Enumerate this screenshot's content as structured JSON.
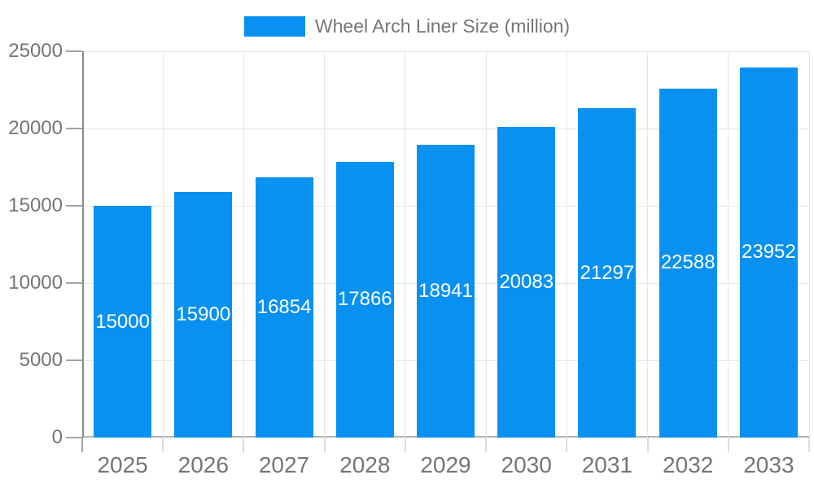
{
  "legend": {
    "label": "Wheel Arch Liner Size (million)"
  },
  "colors": {
    "bar": "#0991f2",
    "bar_value_label": "#ffffff",
    "grid": "#e6e6e6",
    "y_axis_line": "#8a8a8a",
    "x_axis_line": "#b3b3b3",
    "y_tick": "#a3a3a3",
    "x_tick": "#dcdcdc",
    "tick_text": "#757575",
    "background": "#ffffff"
  },
  "chart_data": {
    "type": "bar",
    "title": "Wheel Arch Liner Size (million)",
    "categories": [
      "2025",
      "2026",
      "2027",
      "2028",
      "2029",
      "2030",
      "2031",
      "2032",
      "2033"
    ],
    "values": [
      15000,
      15900,
      16854,
      17866,
      18941,
      20083,
      21297,
      22588,
      23952
    ],
    "value_labels": [
      "15000",
      "15900",
      "16854",
      "17866",
      "18941",
      "20083",
      "21297",
      "22588",
      "23952"
    ],
    "xlabel": "",
    "ylabel": "",
    "ylim": [
      0,
      25000
    ],
    "yticks": [
      0,
      5000,
      10000,
      15000,
      20000,
      25000
    ],
    "ytick_labels": [
      "0",
      "5000",
      "10000",
      "15000",
      "20000",
      "25000"
    ],
    "grid": true,
    "legend_position": "top",
    "value_label_position": "center-of-bar"
  }
}
